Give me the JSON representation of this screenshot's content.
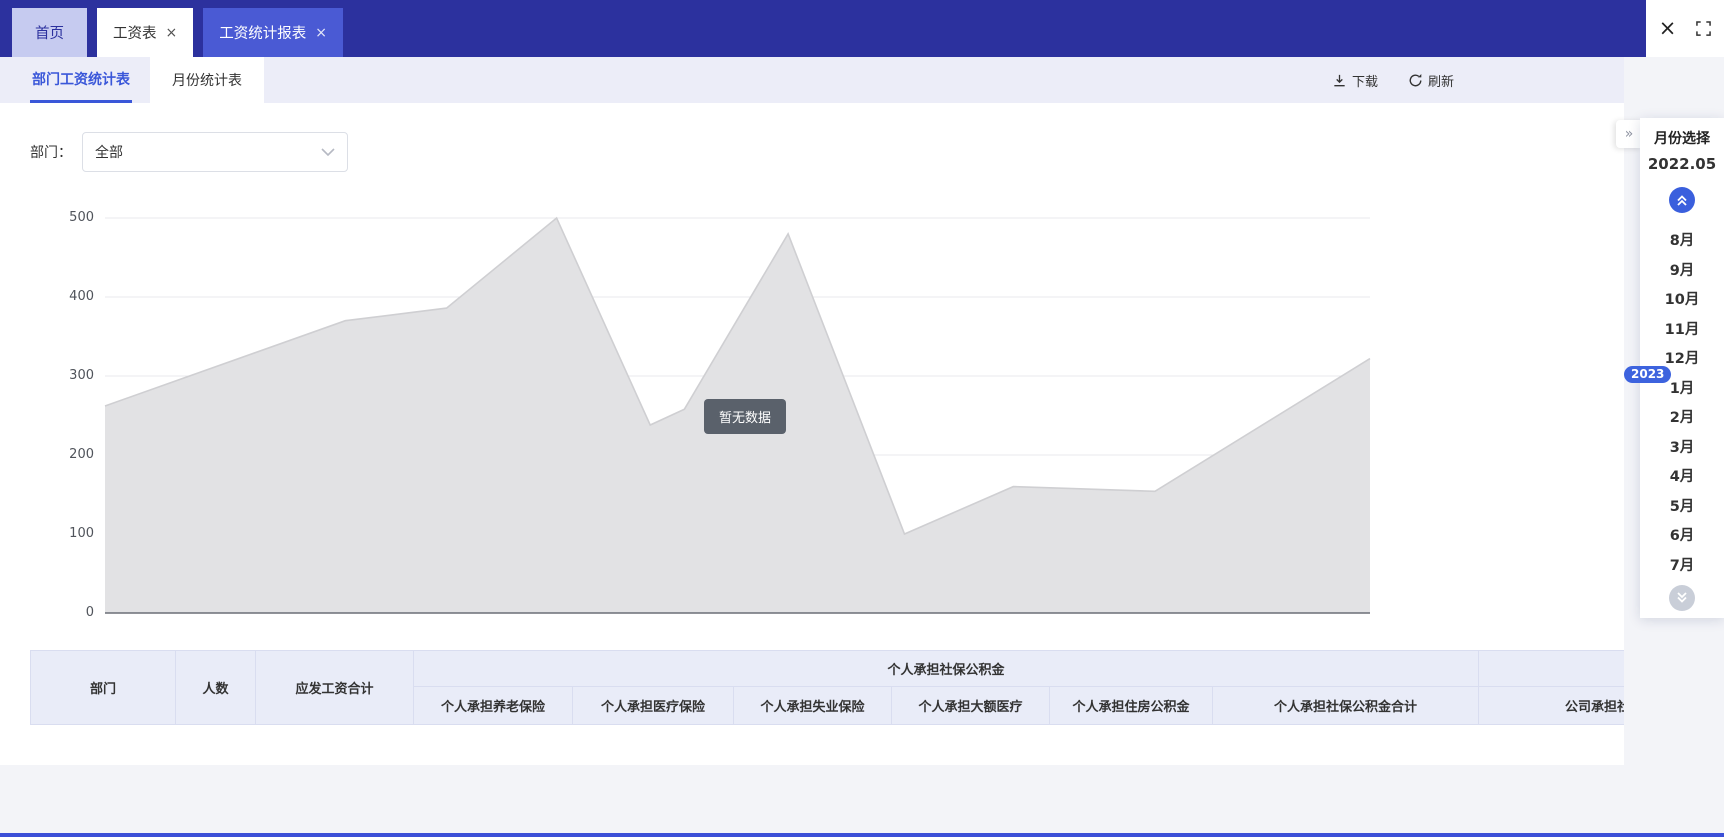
{
  "topbar": {
    "tabs": [
      {
        "label": "首页",
        "closable": false
      },
      {
        "label": "工资表",
        "closable": true
      },
      {
        "label": "工资统计报表",
        "closable": true
      }
    ],
    "close_glyph": "×",
    "collapse_glyph": "»"
  },
  "toolbar": {
    "subtabs": [
      {
        "label": "部门工资统计表",
        "active": true
      },
      {
        "label": "月份统计表",
        "active": false
      }
    ],
    "download_label": "下载",
    "refresh_label": "刷新"
  },
  "filter": {
    "department_label": "部门：",
    "department_value": "全部"
  },
  "chart_data": {
    "type": "area",
    "title": "",
    "xlabel": "",
    "ylabel": "",
    "ylim": [
      0,
      500
    ],
    "yticks": [
      0,
      100,
      200,
      300,
      400,
      500
    ],
    "grid": true,
    "x_axis_labels": [],
    "points": [
      [
        0.0,
        262
      ],
      [
        0.19,
        370
      ],
      [
        0.27,
        386
      ],
      [
        0.357,
        500
      ],
      [
        0.431,
        238
      ],
      [
        0.458,
        258
      ],
      [
        0.54,
        480
      ],
      [
        0.632,
        100
      ],
      [
        0.718,
        160
      ],
      [
        0.83,
        154
      ],
      [
        1.0,
        322
      ]
    ],
    "empty_text": "暂无数据",
    "fill_color": "#e2e2e4",
    "line_color": "#cfcfd2",
    "axis_color": "#6b6e76",
    "grid_color": "#e9e9ec"
  },
  "month_panel": {
    "title": "月份选择",
    "current": "2022.05",
    "year_badge": "2023",
    "months": [
      "8月",
      "9月",
      "10月",
      "11月",
      "12月",
      "1月",
      "2月",
      "3月",
      "4月",
      "5月",
      "6月",
      "7月"
    ]
  },
  "table": {
    "static_columns": [
      "部门",
      "人数",
      "应发工资合计"
    ],
    "group_header": "个人承担社保公积金",
    "group_columns": [
      "个人承担养老保险",
      "个人承担医疗保险",
      "个人承担失业保险",
      "个人承担大额医疗",
      "个人承担住房公积金",
      "个人承担社保公积金合计"
    ],
    "trailing_group_header": "",
    "trailing_column": "公司承担社保公积金"
  },
  "colors": {
    "topbar_bg": "#2c319e",
    "active_tab_bg": "#4a5ad4",
    "home_tab_bg": "#c6cbf0",
    "accent": "#3a57d9",
    "toolbar_bg": "#ecedf8",
    "table_header_bg": "#e9ecf8",
    "nodata_badge_bg": "#5a616b",
    "bottom_bar": "#3b4fd7"
  }
}
